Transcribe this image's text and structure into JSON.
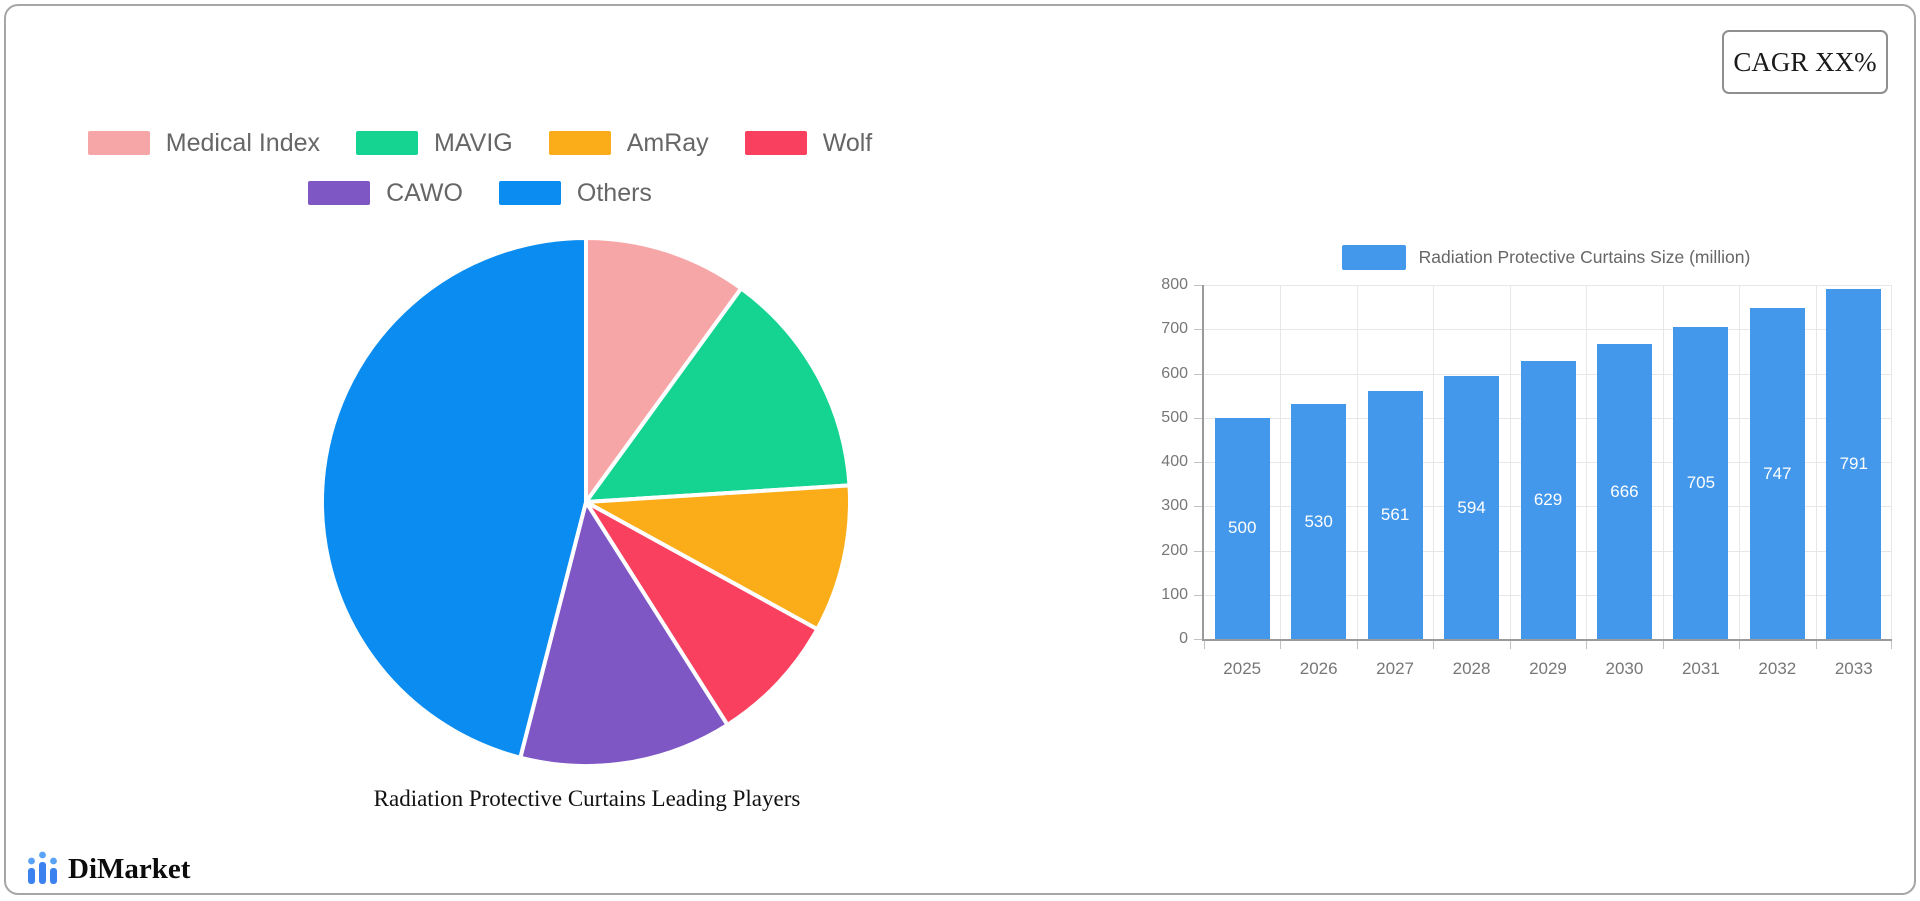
{
  "cagr_label": "CAGR XX%",
  "logo_text": "DiMarket",
  "colors": {
    "bar_blue": "#4398eb",
    "axis_line": "#9a9a9a",
    "grid_line": "#e7e7e7",
    "tick_text": "#777777",
    "legend_text": "#666666"
  },
  "chart_data": [
    {
      "type": "pie",
      "title": "Radiation Protective Curtains Leading Players",
      "labels": [
        "Medical Index",
        "MAVIG",
        "AmRay",
        "Wolf",
        "CAWO",
        "Others"
      ],
      "values": [
        10,
        14,
        9,
        8,
        13,
        46
      ],
      "values_note": "percent share, estimated from slice angles",
      "colors": [
        "#f7a6a7",
        "#15d492",
        "#fbac19",
        "#f9405f",
        "#7e57c5",
        "#0a8cf0"
      ],
      "legend_position": "top",
      "legend_rows": [
        4,
        2
      ],
      "start_angle_deg": 0,
      "direction": "clockwise"
    },
    {
      "type": "bar",
      "categories": [
        "2025",
        "2026",
        "2027",
        "2028",
        "2029",
        "2030",
        "2031",
        "2032",
        "2033"
      ],
      "series": [
        {
          "name": "Radiation Protective Curtains Size (million)",
          "values": [
            500,
            530,
            561,
            594,
            629,
            666,
            705,
            747,
            791
          ]
        }
      ],
      "bar_color": "#4398eb",
      "value_label_style": "white, centered inside bar",
      "ylim": [
        0,
        800
      ],
      "ytick_step": 100,
      "grid": true,
      "legend_position": "top"
    }
  ]
}
